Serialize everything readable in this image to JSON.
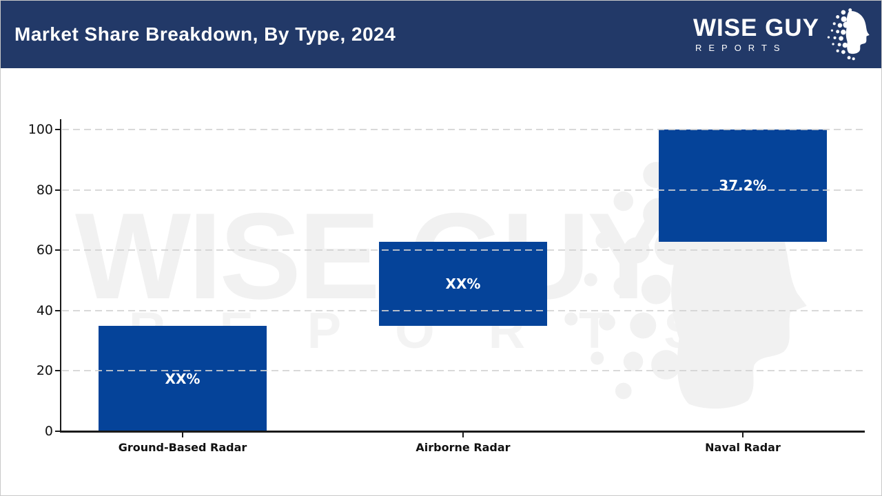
{
  "header": {
    "title": "Market Share Breakdown, By Type, 2024",
    "bg_color": "#223968",
    "logo": {
      "line1": "WISE GUY",
      "line2": "REPORTS"
    }
  },
  "watermark": {
    "line1": "WISE GUY",
    "line2": "REPORTS"
  },
  "chart_data": {
    "type": "bar",
    "variant": "waterfall-stacked-segments",
    "title": "Market Share Breakdown, By Type, 2024",
    "categories": [
      "Ground-Based Radar",
      "Airborne Radar",
      "Naval Radar"
    ],
    "segments": [
      {
        "category": "Ground-Based Radar",
        "start": 0,
        "end": 34.9,
        "value": 34.9,
        "label": "XX%"
      },
      {
        "category": "Airborne Radar",
        "start": 34.9,
        "end": 62.8,
        "value": 27.9,
        "label": "XX%"
      },
      {
        "category": "Naval Radar",
        "start": 62.8,
        "end": 100,
        "value": 37.2,
        "label": "37.2%"
      }
    ],
    "xlabel": "",
    "ylabel": "",
    "ylim": [
      0,
      100
    ],
    "yticks": [
      0,
      20,
      40,
      60,
      80,
      100
    ],
    "grid": "horizontal-dashed",
    "legend": "none",
    "bar_color": "#054399",
    "bar_label_color": "#ffffff"
  }
}
